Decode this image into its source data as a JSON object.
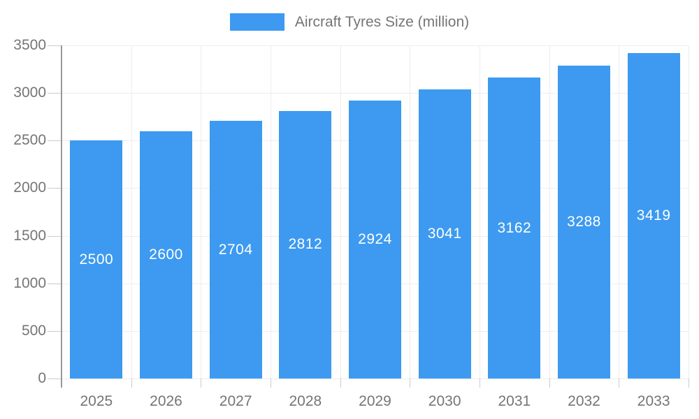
{
  "chart_data": {
    "type": "bar",
    "title": "Aircraft Tyres Size (million)",
    "legend": {
      "label": "Aircraft Tyres Size (million)",
      "position": "top"
    },
    "categories": [
      "2025",
      "2026",
      "2027",
      "2028",
      "2029",
      "2030",
      "2031",
      "2032",
      "2033"
    ],
    "series": [
      {
        "name": "Aircraft Tyres Size (million)",
        "values": [
          2500,
          2600,
          2704,
          2812,
          2924,
          3041,
          3162,
          3288,
          3419
        ]
      }
    ],
    "xlabel": "",
    "ylabel": "",
    "ylim": [
      0,
      3500
    ],
    "yticks": [
      0,
      500,
      1000,
      1500,
      2000,
      2500,
      3000,
      3500
    ],
    "grid": true,
    "bar_labels_shown": true,
    "colors": {
      "bar": "#3D9AF0",
      "bar_value_label": "#ffffff",
      "axis_text": "#757575",
      "gridline": "#ededed",
      "tick": "#cccccc",
      "axis_line": "#999999"
    }
  }
}
